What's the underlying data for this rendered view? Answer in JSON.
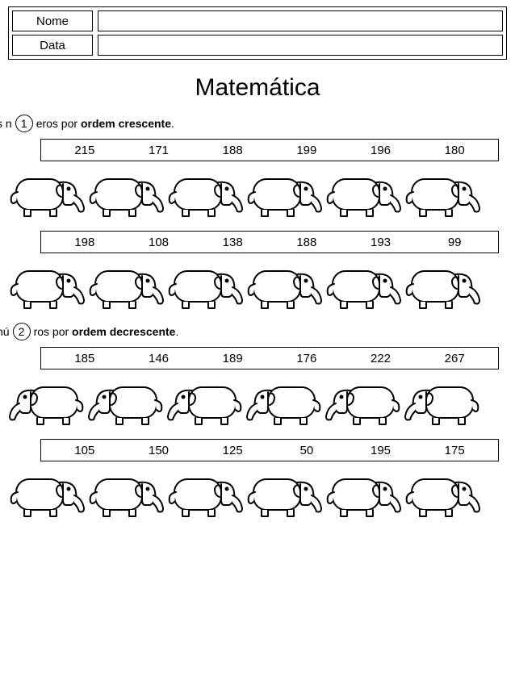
{
  "header": {
    "name_label": "Nome",
    "date_label": "Data"
  },
  "title": "Matemática",
  "instr1": {
    "num": "1",
    "pre": "s n",
    "post": "eros por ",
    "bold": "ordem crescente",
    "end": "."
  },
  "instr2": {
    "num": "2",
    "pre": "nú",
    "post": "ros por ",
    "bold": "ordem decrescente",
    "end": "."
  },
  "rows": {
    "r1": [
      "215",
      "171",
      "188",
      "199",
      "196",
      "180"
    ],
    "r2": [
      "198",
      "108",
      "138",
      "188",
      "193",
      "99"
    ],
    "r3": [
      "185",
      "146",
      "189",
      "176",
      "222",
      "267"
    ],
    "r4": [
      "105",
      "150",
      "125",
      "50",
      "195",
      "175"
    ]
  },
  "style": {
    "border_color": "#000000",
    "bg": "#ffffff",
    "text": "#000000",
    "title_fontsize": 30,
    "body_fontsize": 15,
    "instr_fontsize": 14,
    "elephants_per_row": 6
  }
}
